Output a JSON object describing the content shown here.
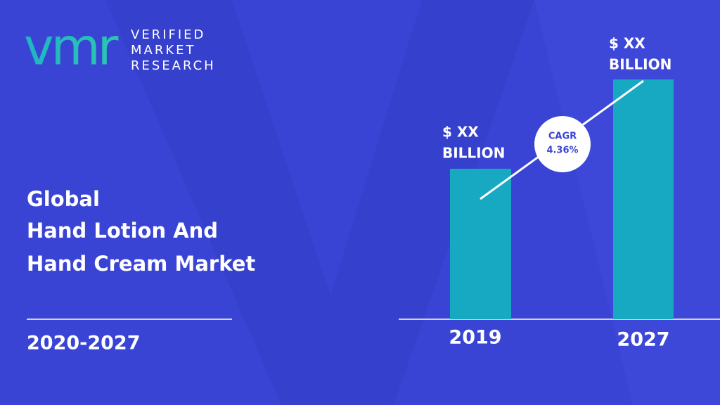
{
  "logo": {
    "mark": "vmr",
    "lines": [
      "VERIFIED",
      "MARKET",
      "RESEARCH"
    ]
  },
  "title_lines": [
    "Global",
    "Hand Lotion And",
    "Hand Cream Market"
  ],
  "period": "2020-2027",
  "bars": [
    {
      "value_lines": [
        "$ XX",
        "BILLION"
      ],
      "year": "2019"
    },
    {
      "value_lines": [
        "$ XX",
        "BILLION"
      ],
      "year": "2027"
    }
  ],
  "cagr": {
    "label": "CAGR",
    "value": "4.36%"
  }
}
